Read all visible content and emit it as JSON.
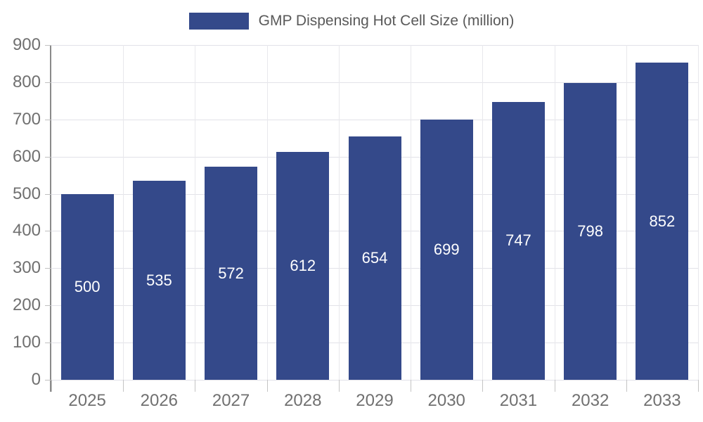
{
  "chart_data": {
    "type": "bar",
    "title": "GMP Dispensing Hot Cell Size (million)",
    "categories": [
      "2025",
      "2026",
      "2027",
      "2028",
      "2029",
      "2030",
      "2031",
      "2032",
      "2033"
    ],
    "values": [
      500,
      535,
      572,
      612,
      654,
      699,
      747,
      798,
      852
    ],
    "xlabel": "",
    "ylabel": "",
    "ylim": [
      0,
      900
    ],
    "ytick_step": 100,
    "grid": true,
    "legend_position": "top",
    "bar_labels_inside": true,
    "colors": {
      "bar": "#34498a",
      "bar_label": "#ffffff",
      "title_text": "#595959",
      "tick_text": "#707070",
      "gridline": "#e2e2e8",
      "axis_line": "#8a8a8a",
      "tick_mark": "#c4c4c4",
      "background": "#ffffff"
    }
  }
}
